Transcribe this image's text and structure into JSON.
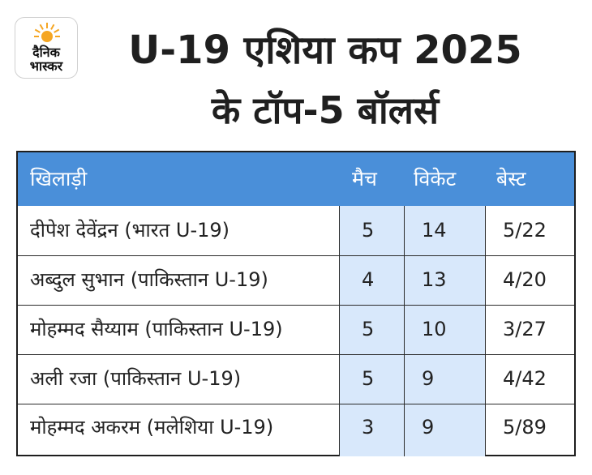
{
  "brand": {
    "line1": "दैनिक",
    "line2": "भास्कर",
    "sun_color": "#f5a623"
  },
  "title": {
    "line1": "U-19 एशिया कप 2025",
    "line2": "के टॉप-5 बॉलर्स"
  },
  "table": {
    "header_color": "#4a8fd9",
    "highlight_color": "#d8e8fb",
    "headers": [
      "खिलाड़ी",
      "मैच",
      "विकेट",
      "बेस्ट"
    ],
    "rows": [
      [
        "दीपेश देवेंद्रन (भारत U-19)",
        "5",
        "14",
        "5/22"
      ],
      [
        "अब्दुल सुभान (पाकिस्तान U-19)",
        "4",
        "13",
        "4/20"
      ],
      [
        "मोहम्मद सैय्याम (पाकिस्तान U-19)",
        "5",
        "10",
        "3/27"
      ],
      [
        "अली रजा (पाकिस्तान U-19)",
        "5",
        "9",
        "4/42"
      ],
      [
        "मोहम्मद अकरम (मलेशिया U-19)",
        "3",
        "9",
        "5/89"
      ]
    ]
  }
}
